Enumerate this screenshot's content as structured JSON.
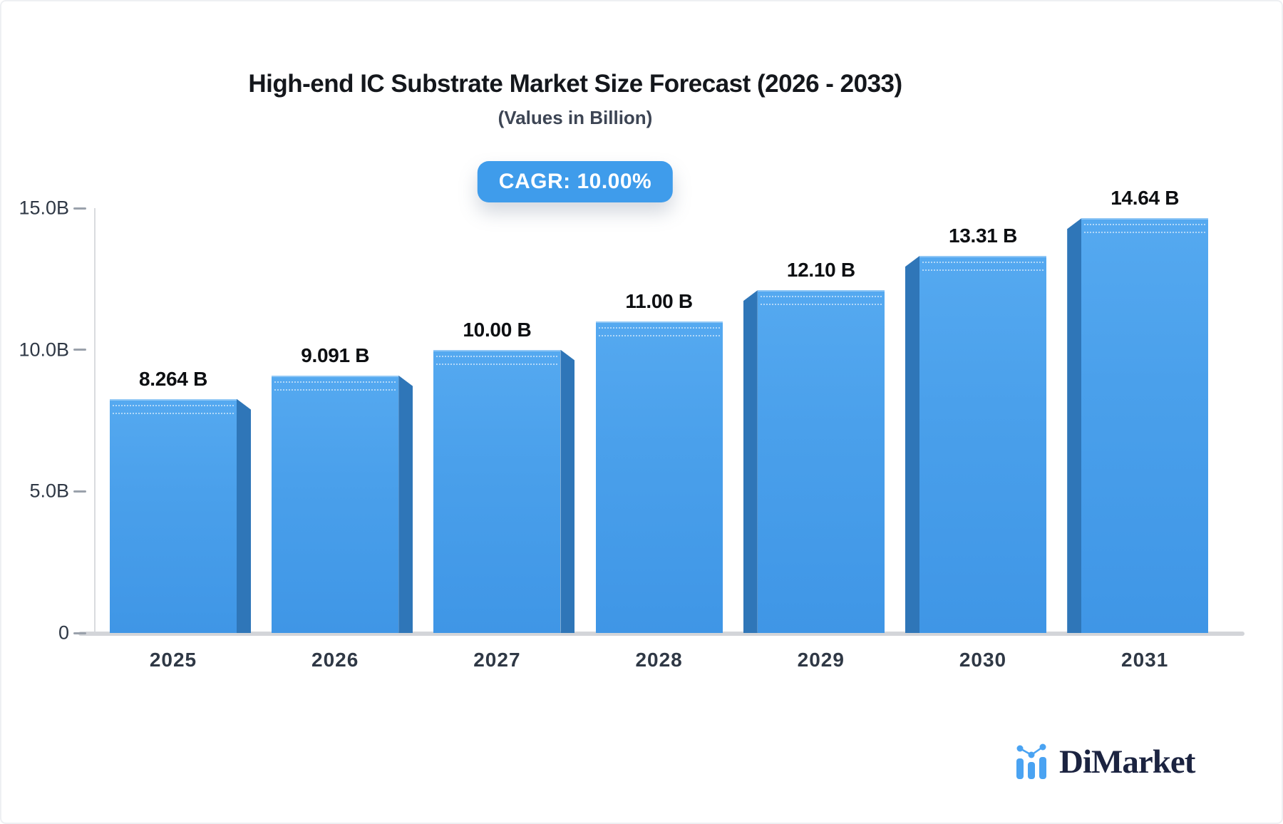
{
  "header": {
    "title": "High-end IC Substrate Market Size Forecast (2026 - 2033)",
    "subtitle": "(Values in Billion)",
    "cagr_label": "CAGR: 10.00%"
  },
  "chart_data": {
    "type": "bar",
    "title": "High-end IC Substrate Market Size Forecast (2026 - 2033)",
    "subtitle": "(Values in Billion)",
    "annotation": "CAGR: 10.00%",
    "categories": [
      "2025",
      "2026",
      "2027",
      "2028",
      "2029",
      "2030",
      "2031"
    ],
    "values": [
      8.264,
      9.091,
      10.0,
      11.0,
      12.1,
      13.31,
      14.64
    ],
    "value_labels": [
      "8.264 B",
      "9.091 B",
      "10.00 B",
      "11.00 B",
      "12.10 B",
      "13.31 B",
      "14.64 B"
    ],
    "ylim": [
      0,
      15
    ],
    "yticks": [
      {
        "value": 15,
        "label": "15.0B"
      },
      {
        "value": 10,
        "label": "10.0B"
      },
      {
        "value": 5,
        "label": "5.0B"
      },
      {
        "value": 0,
        "label": "0"
      }
    ],
    "grid": false,
    "legend": false,
    "bar_color": "#459dea",
    "bar_side_color": "#2f76b8",
    "badge_color": "#3f9ceb"
  },
  "footer": {
    "brand": "DiMarket",
    "brand_icon": "mini-bar-chart-icon",
    "brand_color": "#1b2340",
    "icon_color": "#4aa3f2"
  }
}
